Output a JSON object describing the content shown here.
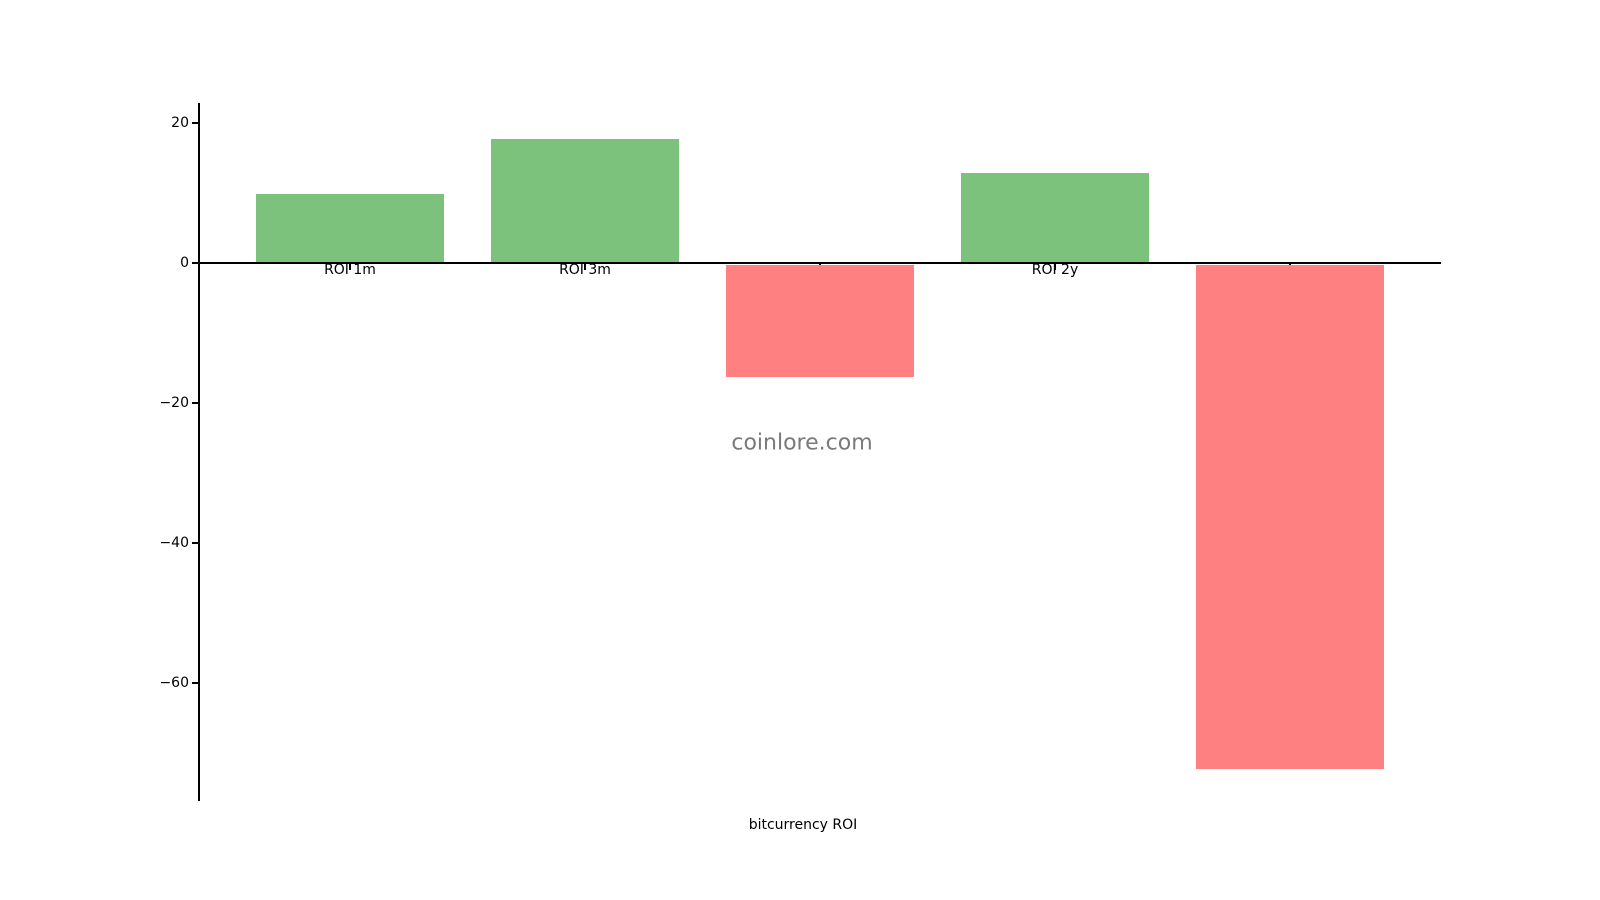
{
  "chart_data": {
    "type": "bar",
    "title": "",
    "xlabel": "bitcurrency ROI",
    "ylabel": "",
    "categories": [
      "ROI 1m",
      "ROI 3m",
      "",
      "ROI 2y",
      ""
    ],
    "values": [
      9.9,
      17.7,
      -16.0,
      12.9,
      -72.1
    ],
    "yticks": [
      {
        "value": 20,
        "label": "20"
      },
      {
        "value": 0,
        "label": "0"
      },
      {
        "value": -20,
        "label": "−20"
      },
      {
        "value": -40,
        "label": "−40"
      },
      {
        "value": -60,
        "label": "−60"
      }
    ],
    "ylim": [
      -77,
      23
    ],
    "grid": false,
    "legend_position": "none",
    "positive_color": "#7cc17c",
    "negative_color": "#ff8080",
    "axis_color": "#000000"
  },
  "watermark": {
    "text": "coinlore.com",
    "color": "#7a7a7a"
  }
}
